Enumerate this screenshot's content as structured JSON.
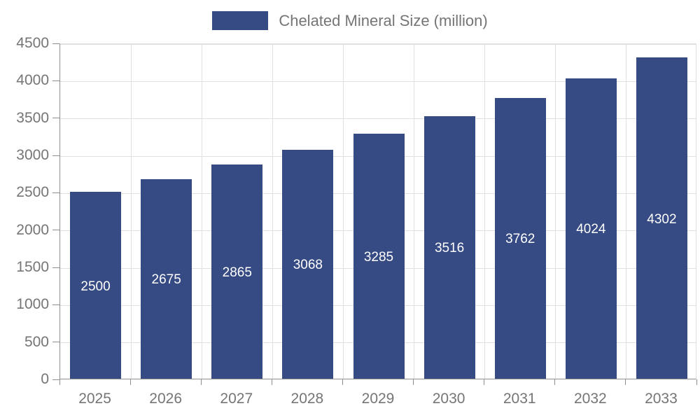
{
  "chart_data": {
    "type": "bar",
    "title": "",
    "legend": "Chelated Mineral Size (million)",
    "categories": [
      "2025",
      "2026",
      "2027",
      "2028",
      "2029",
      "2030",
      "2031",
      "2032",
      "2033"
    ],
    "series": [
      {
        "name": "Chelated Mineral Size (million)",
        "values": [
          2500,
          2675,
          2865,
          3068,
          3285,
          3516,
          3762,
          4024,
          4302
        ]
      }
    ],
    "bar_value_labels": [
      "2500",
      "2675",
      "2865",
      "3068",
      "3285",
      "3516",
      "3762",
      "4024",
      "4302"
    ],
    "xlabel": "",
    "ylabel": "",
    "ylim": [
      0,
      4500
    ],
    "yticks": [
      0,
      500,
      1000,
      1500,
      2000,
      2500,
      3000,
      3500,
      4000,
      4500
    ],
    "grid": true,
    "legend_position": "top-center",
    "colors": {
      "bar": "#364A84",
      "bar_label_text": "#ffffff",
      "axis_text": "#757575",
      "legend_text": "#757575",
      "grid_line": "#e0e0e0",
      "axis_line": "#8f8f8f",
      "background": "#ffffff"
    }
  }
}
